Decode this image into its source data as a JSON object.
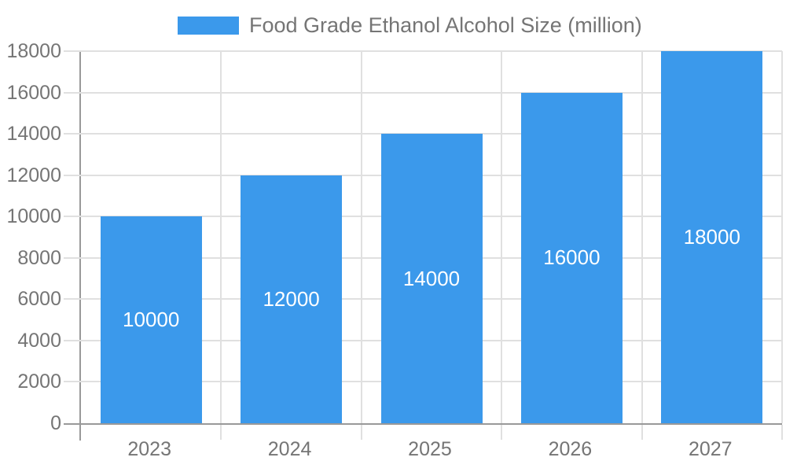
{
  "chart_data": {
    "type": "bar",
    "title": "Food Grade Ethanol Alcohol Size (million)",
    "categories": [
      "2023",
      "2024",
      "2025",
      "2026",
      "2027"
    ],
    "series": [
      {
        "name": "Food Grade Ethanol Alcohol Size (million)",
        "values": [
          10000,
          12000,
          14000,
          16000,
          18000
        ]
      }
    ],
    "bar_value_labels": [
      "10000",
      "12000",
      "14000",
      "16000",
      "18000"
    ],
    "ytick_labels": [
      "0",
      "2000",
      "4000",
      "6000",
      "8000",
      "10000",
      "12000",
      "14000",
      "16000",
      "18000"
    ],
    "xlabel": "",
    "ylabel": "",
    "ylim": [
      0,
      18000
    ],
    "ytick_step": 2000,
    "grid": true,
    "legend_position": "top"
  },
  "colors": {
    "bar": "#3B99EB",
    "grid": "#E0E0E0",
    "axis": "#999999",
    "text": "#757575",
    "bar_label": "#FFFFFF",
    "background": "#FFFFFF"
  }
}
